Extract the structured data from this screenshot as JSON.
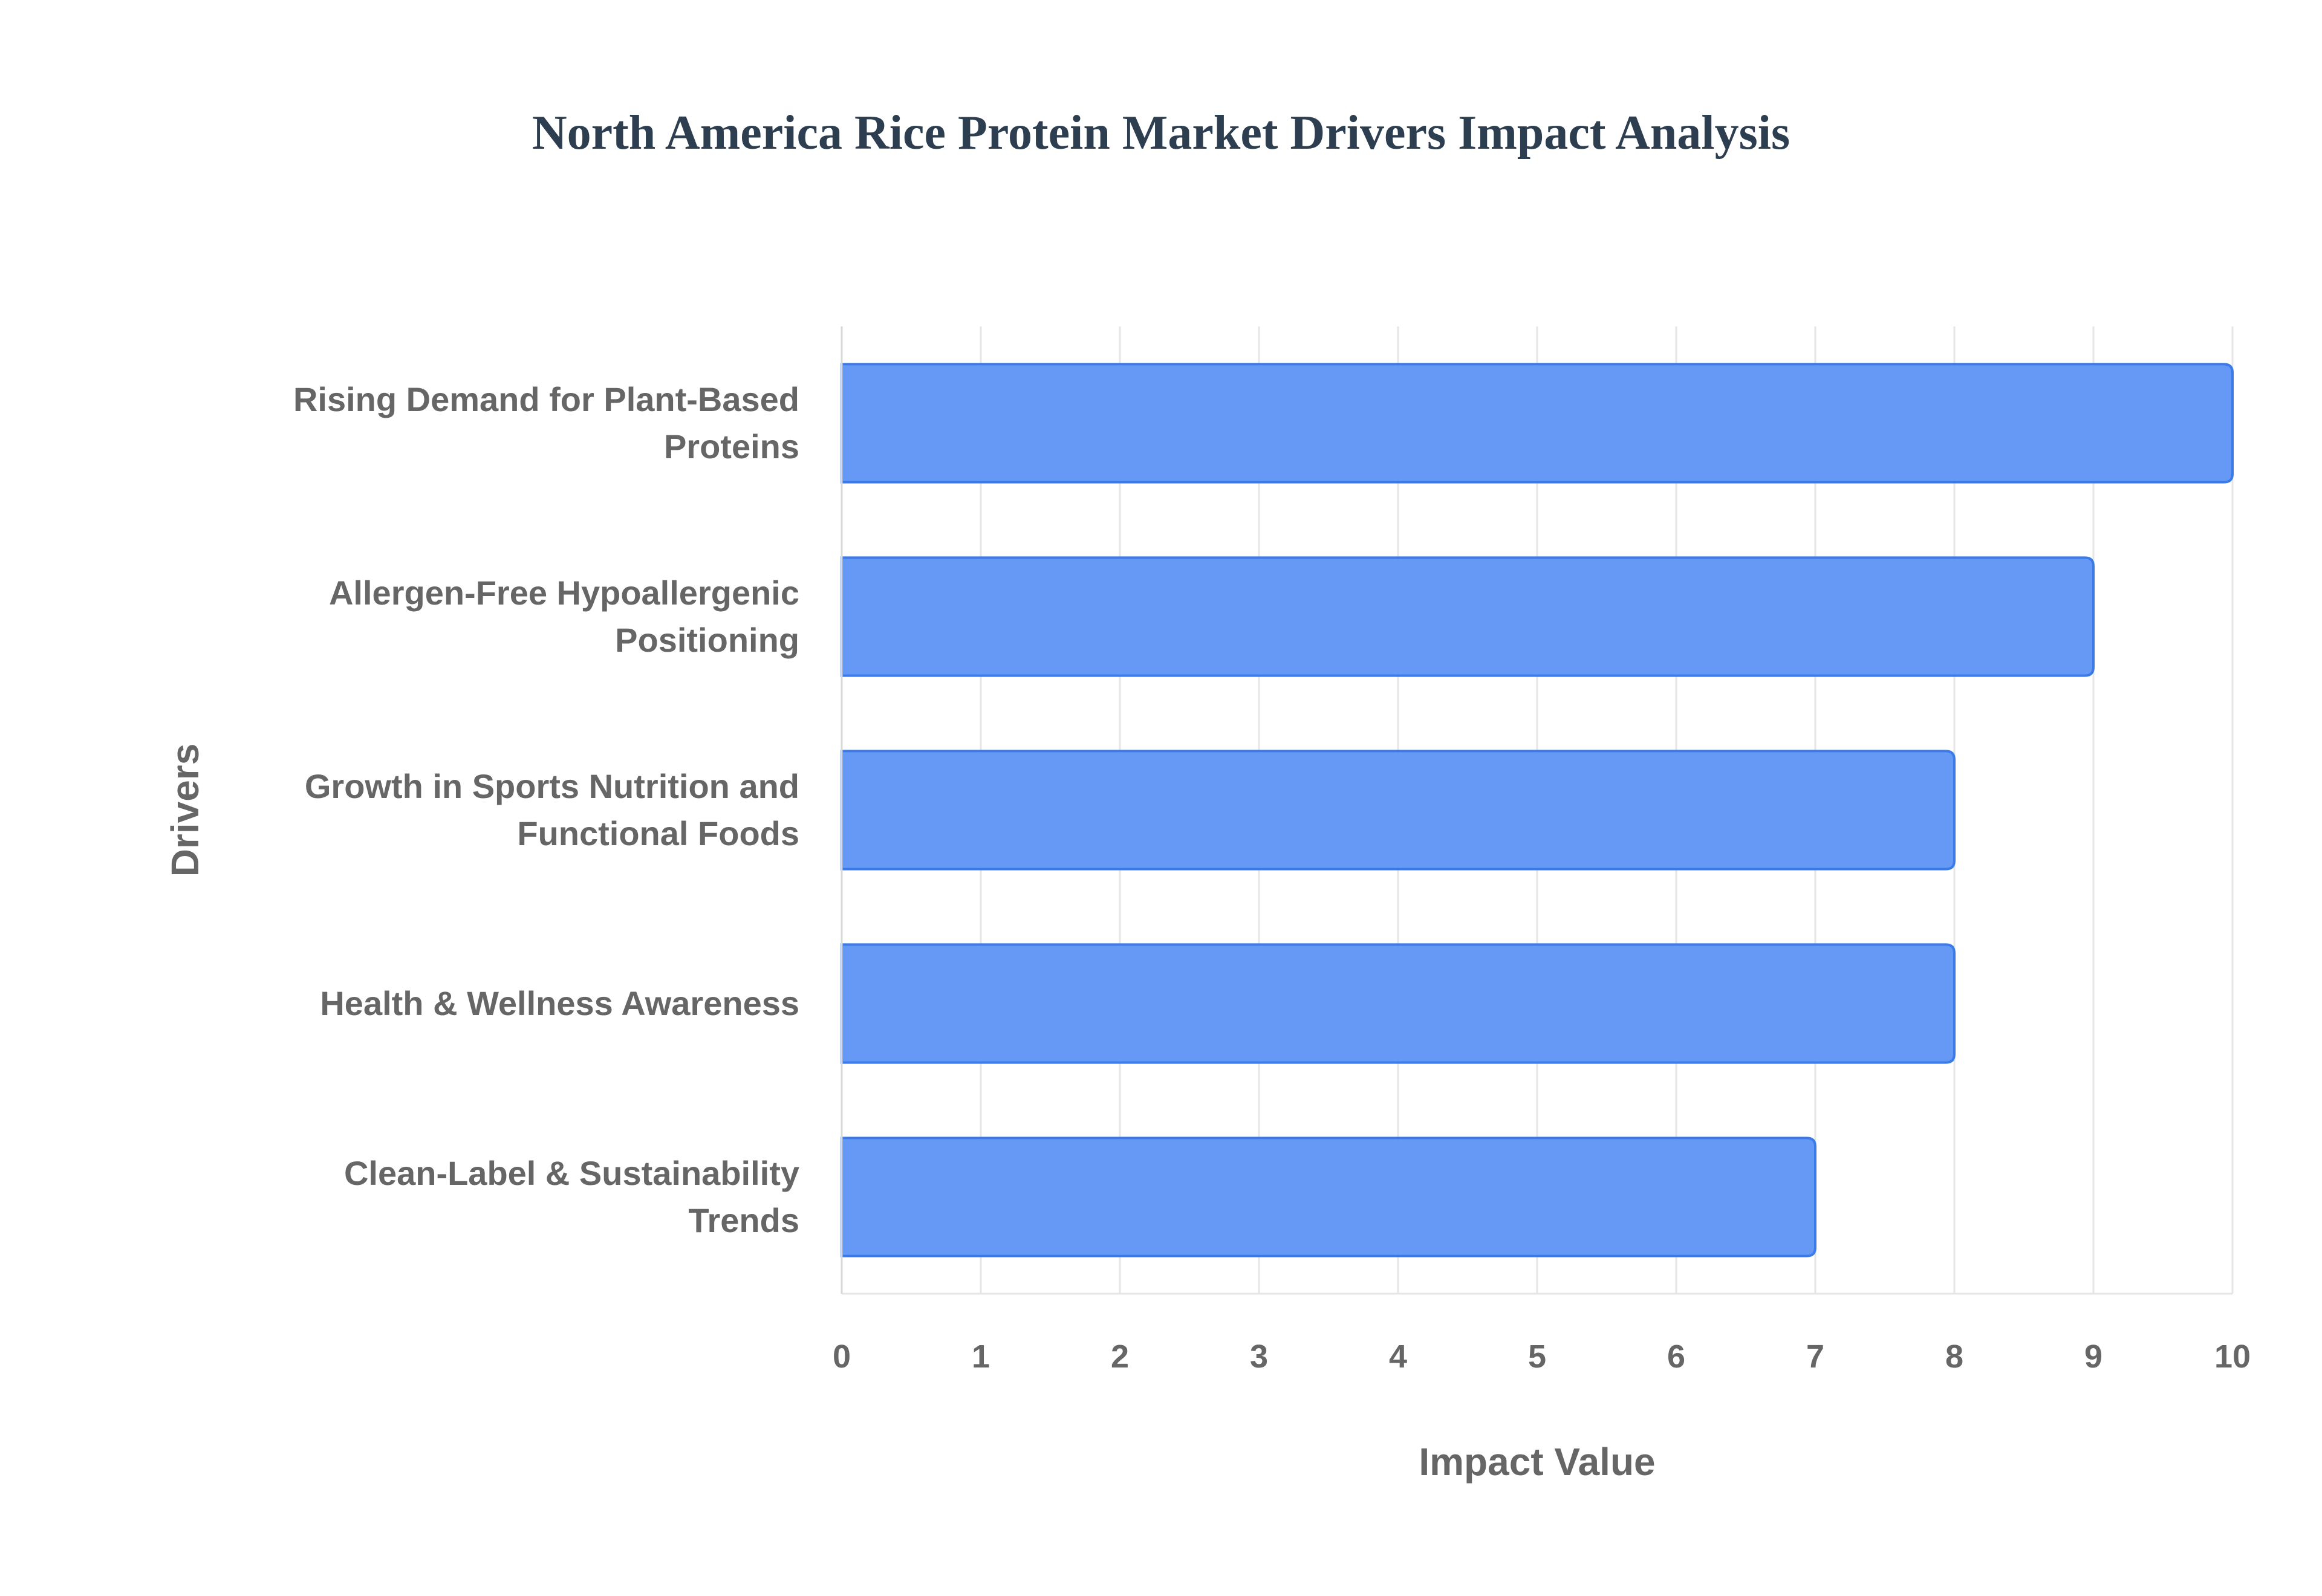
{
  "chart_data": {
    "type": "bar",
    "orientation": "horizontal",
    "title": "North America Rice Protein Market Drivers Impact Analysis",
    "xlabel": "Impact Value",
    "ylabel": "Drivers",
    "categories": [
      [
        "Rising Demand for Plant-Based",
        "Proteins"
      ],
      [
        "Allergen-Free Hypoallergenic",
        "Positioning"
      ],
      [
        "Growth in Sports Nutrition and",
        "Functional Foods"
      ],
      [
        "Health & Wellness Awareness"
      ],
      [
        "Clean-Label & Sustainability",
        "Trends"
      ]
    ],
    "values": [
      10,
      9,
      8,
      8,
      7
    ],
    "xlim": [
      0,
      10
    ],
    "xticks": [
      "0",
      "1",
      "2",
      "3",
      "4",
      "5",
      "6",
      "7",
      "8",
      "9",
      "10"
    ],
    "grid": true,
    "legend": "none",
    "colors": {
      "bar_fill": "#6699f5",
      "bar_stroke": "#3b7be8",
      "grid": "#e6e6e6",
      "axis_text": "#666666",
      "title": "#2c3e50"
    }
  }
}
